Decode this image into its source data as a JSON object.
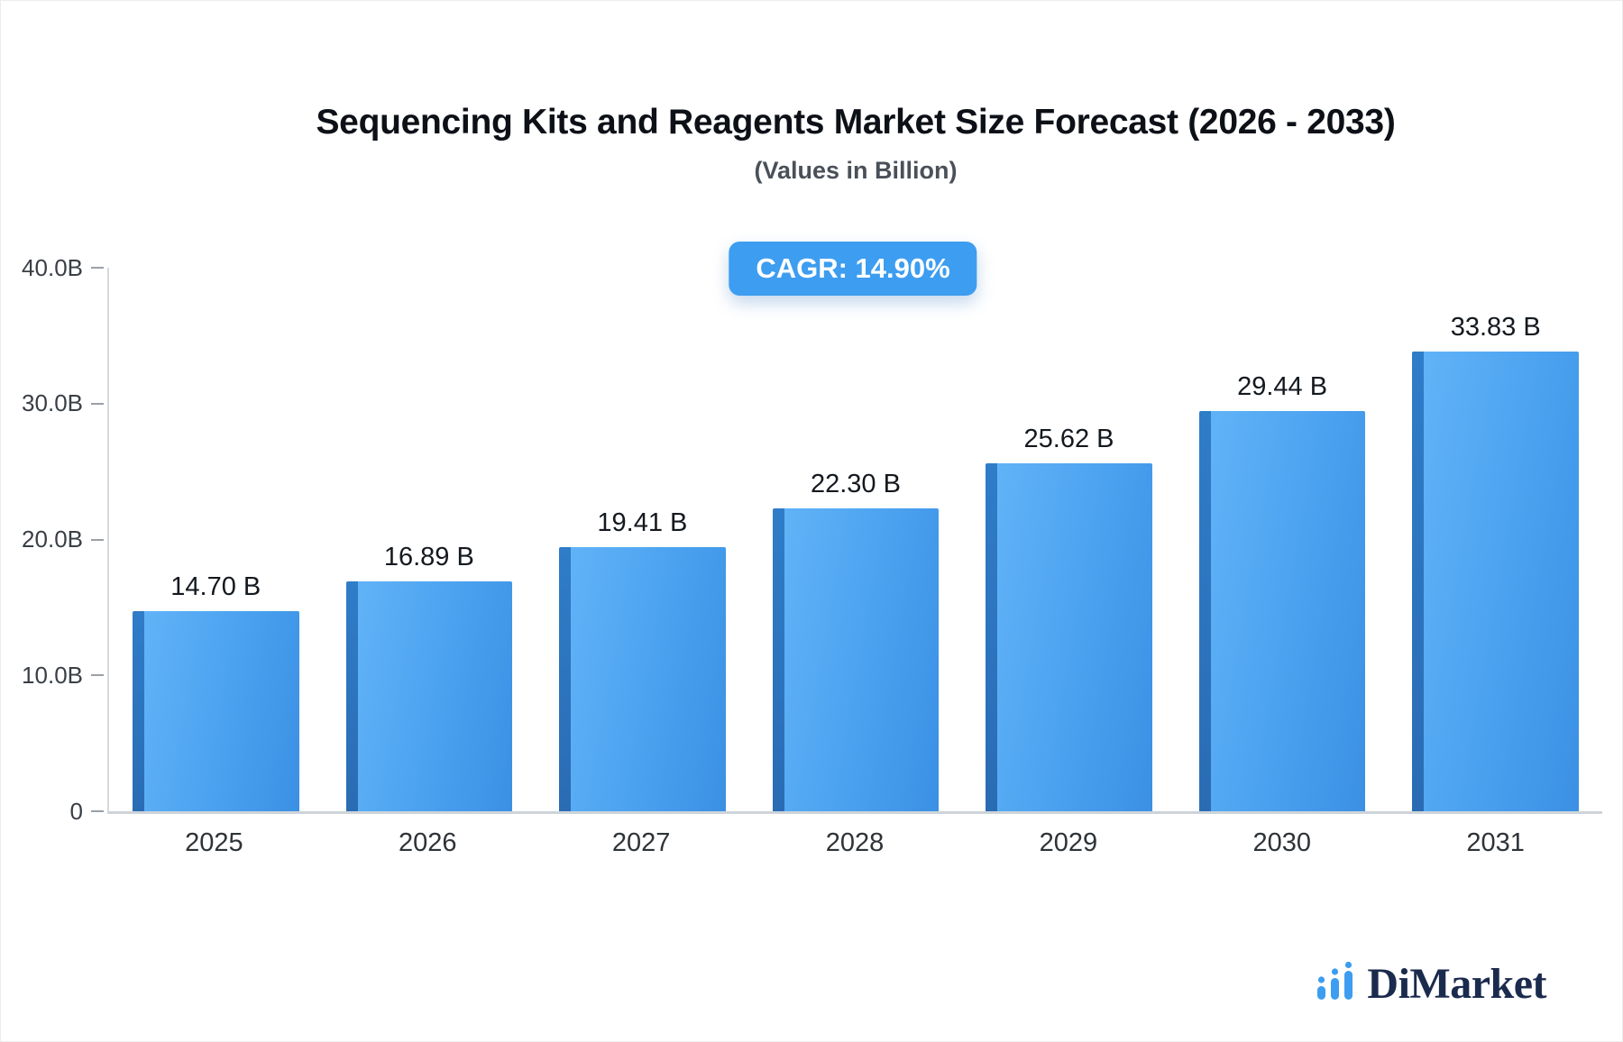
{
  "chart_data": {
    "type": "bar",
    "title": "Sequencing Kits and Reagents Market Size Forecast (2026 - 2033)",
    "subtitle": "(Values in Billion)",
    "annotation_badge": "CAGR: 14.90%",
    "categories": [
      "2025",
      "2026",
      "2027",
      "2028",
      "2029",
      "2030",
      "2031"
    ],
    "values": [
      14.7,
      16.89,
      19.41,
      22.3,
      25.62,
      29.44,
      33.83
    ],
    "value_labels": [
      "14.70 B",
      "16.89 B",
      "19.41 B",
      "22.30 B",
      "25.62 B",
      "29.44 B",
      "33.83 B"
    ],
    "xlabel": "",
    "ylabel": "",
    "ylim": [
      0,
      40
    ],
    "yticks": [
      0,
      10,
      20,
      30,
      40
    ],
    "ytick_labels": [
      "0",
      "10.0B",
      "20.0B",
      "30.0B",
      "40.0B"
    ],
    "grid": false,
    "legend_position": "none",
    "colors": {
      "bar_face_light": "#61b3f7",
      "bar_face_dark": "#3b90e4",
      "bar_side": "#2d74c2",
      "badge_background": "#3d9df0",
      "badge_text": "#ffffff",
      "axis": "#ced4d9",
      "logo_icon_blue": "#3d9df0",
      "logo_text_navy": "#1b2b4d"
    }
  },
  "branding": {
    "logo_text": "DiMarket"
  }
}
